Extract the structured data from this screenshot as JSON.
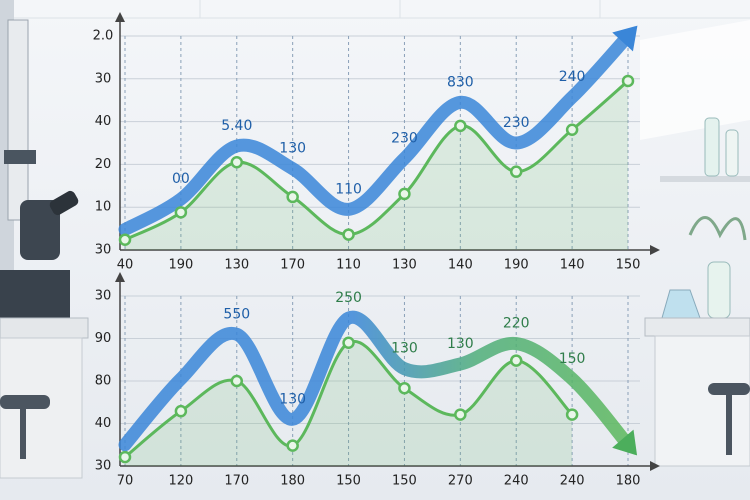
{
  "chart_data": [
    {
      "type": "line",
      "categories": [
        "40",
        "190",
        "130",
        "170",
        "110",
        "130",
        "140",
        "190",
        "140",
        "150"
      ],
      "ylim": [
        0,
        5
      ],
      "yticks": [
        {
          "value": 0,
          "label": "30"
        },
        {
          "value": 1,
          "label": "10"
        },
        {
          "value": 2,
          "label": "20"
        },
        {
          "value": 3,
          "label": "40"
        },
        {
          "value": 4,
          "label": "30"
        },
        {
          "value": 5,
          "label": "2.0"
        }
      ],
      "grid": true,
      "series": [
        {
          "color": "#3a86d8",
          "values": [
            0.48,
            1.19,
            2.43,
            1.9,
            0.95,
            2.14,
            3.45,
            2.5,
            3.57,
            5.0
          ]
        },
        {
          "color": "#5cb85c",
          "values": [
            0.24,
            0.88,
            2.05,
            1.24,
            0.36,
            1.31,
            2.9,
            1.83,
            2.81,
            3.95
          ]
        }
      ],
      "point_labels": [
        null,
        "00",
        "5.40",
        "130",
        "110",
        "230",
        "830",
        "230",
        "240",
        null
      ]
    },
    {
      "type": "line",
      "categories": [
        "70",
        "120",
        "170",
        "180",
        "150",
        "150",
        "270",
        "240",
        "240",
        "180"
      ],
      "ylim": [
        0,
        4
      ],
      "yticks": [
        {
          "value": 0,
          "label": "30"
        },
        {
          "value": 1,
          "label": "40"
        },
        {
          "value": 2,
          "label": "80"
        },
        {
          "value": 3,
          "label": "90"
        },
        {
          "value": 4,
          "label": "30"
        }
      ],
      "grid": true,
      "series": [
        {
          "color": "#3a86d8",
          "values": [
            0.5,
            2.05,
            3.1,
            1.1,
            3.48,
            2.29,
            2.4,
            2.88,
            2.05,
            0.5
          ]
        },
        {
          "color": "#5cb85c",
          "values": [
            0.21,
            1.29,
            2.0,
            0.48,
            2.9,
            1.83,
            1.21,
            2.48,
            1.21,
            null
          ]
        }
      ],
      "point_labels": [
        null,
        null,
        "550",
        "130",
        "250",
        "130",
        "130",
        "220",
        "150",
        null
      ]
    }
  ]
}
